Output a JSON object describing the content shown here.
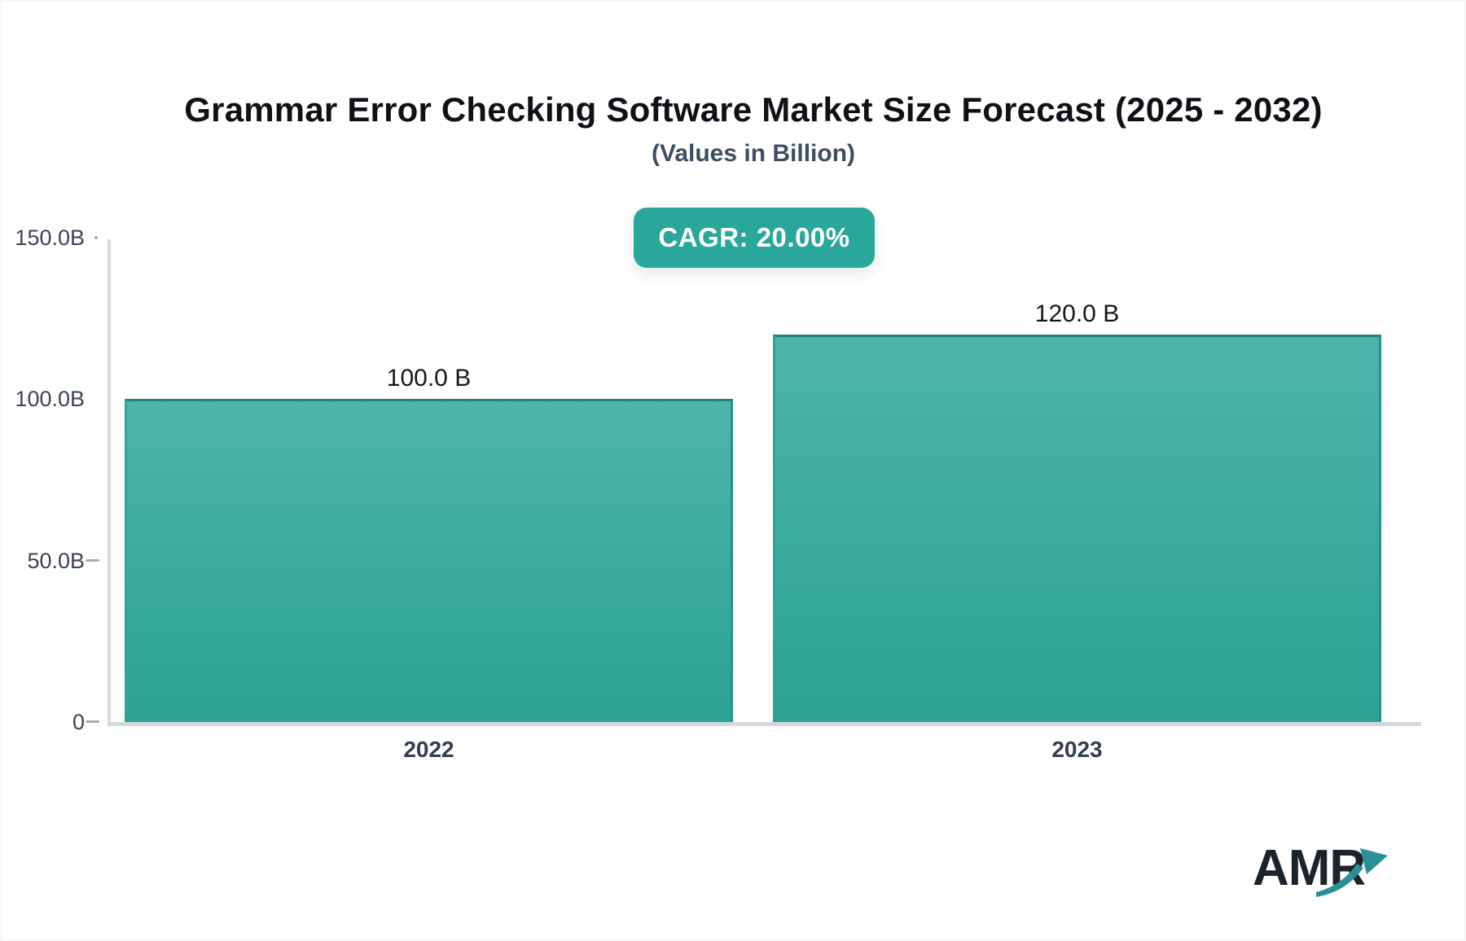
{
  "header": {
    "title": "Grammar Error Checking Software Market Size Forecast (2025 - 2032)",
    "subtitle": "(Values in Billion)"
  },
  "cagr_badge": {
    "label": "CAGR: 20.00%",
    "background": "#2aa79b",
    "text_color": "#ffffff"
  },
  "chart_data": {
    "type": "bar",
    "title": "Grammar Error Checking Software Market Size Forecast (2025 - 2032)",
    "subtitle": "(Values in Billion)",
    "unit": "Billion",
    "cagr": "20.00%",
    "categories": [
      "2022",
      "2023"
    ],
    "values": [
      100.0,
      120.0
    ],
    "value_labels": [
      "100.0 B",
      "120.0 B"
    ],
    "xlabel": "",
    "ylabel": "",
    "ylim": [
      0,
      150
    ],
    "yticks": [
      0,
      50,
      100,
      150
    ],
    "ytick_labels": [
      "0",
      "50.0B",
      "100.0B",
      "150.0B"
    ],
    "ytick_marks": [
      "dash",
      "dash",
      "none",
      "dot"
    ],
    "grid": false,
    "legend": false,
    "bar_color_top": "#4fb4ab",
    "bar_color_bottom": "#2aa294",
    "bar_border_color": "#1e837b",
    "axis_color": "#d5d8dd"
  },
  "logo": {
    "text": "AMR",
    "icon": "growth-arrow-icon",
    "text_color": "#1b232b",
    "arrow_color": "#2b9096"
  }
}
